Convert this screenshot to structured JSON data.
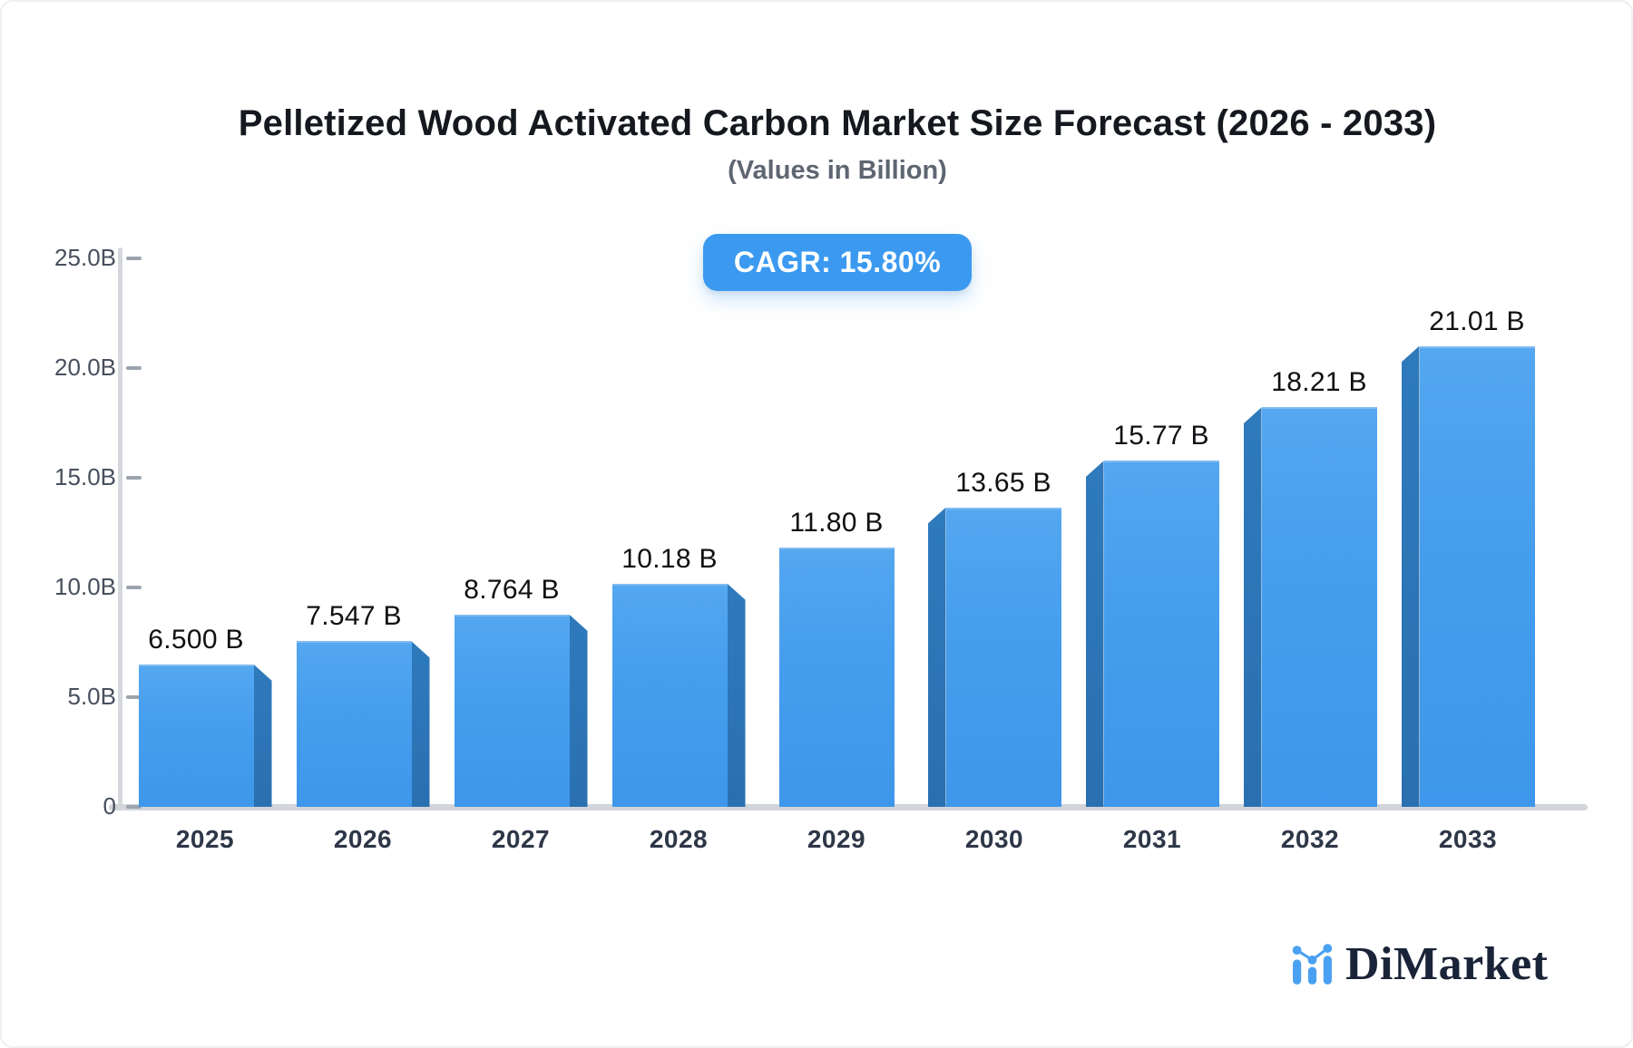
{
  "header": {
    "title": "Pelletized Wood Activated Carbon Market Size Forecast (2026 - 2033)",
    "subtitle": "(Values in Billion)",
    "cagr_badge": "CAGR: 15.80%"
  },
  "chart_data": {
    "type": "bar",
    "title": "Pelletized Wood Activated Carbon Market Size Forecast (2026 - 2033)",
    "subtitle": "(Values in Billion)",
    "categories": [
      "2025",
      "2026",
      "2027",
      "2028",
      "2029",
      "2030",
      "2031",
      "2032",
      "2033"
    ],
    "values": [
      6.5,
      7.547,
      8.764,
      10.18,
      11.8,
      13.65,
      15.77,
      18.21,
      21.01
    ],
    "bar_labels": [
      "6.500 B",
      "7.547 B",
      "8.764 B",
      "10.18 B",
      "11.80 B",
      "13.65 B",
      "15.77 B",
      "18.21 B",
      "21.01 B"
    ],
    "y_ticks": [
      {
        "label": "25.0B",
        "value": 25
      },
      {
        "label": "20.0B",
        "value": 20
      },
      {
        "label": "15.0B",
        "value": 15
      },
      {
        "label": "10.0B",
        "value": 10
      },
      {
        "label": "5.0B",
        "value": 5
      },
      {
        "label": "0",
        "value": 0
      }
    ],
    "ylim": [
      0,
      25
    ],
    "xlabel": "",
    "ylabel": "",
    "grid": "off",
    "legend": "none",
    "annotations": [
      "CAGR: 15.80%"
    ],
    "bar_face_color_top": "#54a7f0",
    "bar_face_color_bottom": "#3e97ea",
    "bar_side_color": "#2d76b6",
    "bar_3d_style": "perspective toward center: 2025-2028 shaded right, 2029 flat, 2030-2033 shaded left"
  },
  "footer": {
    "logo_text": "DiMarket",
    "logo_icon": "mini-bar-line-chart-icon",
    "logo_icon_color": "#4aa1f1",
    "logo_text_color": "#1a2438"
  },
  "colors": {
    "accent_blue": "#3b9af0",
    "axis_line": "#d4d7dc",
    "tick_dash": "#9ba3ad",
    "y_label_text": "#474f5d",
    "year_text": "#2e3748",
    "value_text": "#0e1013",
    "title_text": "#15191f",
    "subtitle_text": "#5e6672",
    "background": "#ffffff"
  }
}
